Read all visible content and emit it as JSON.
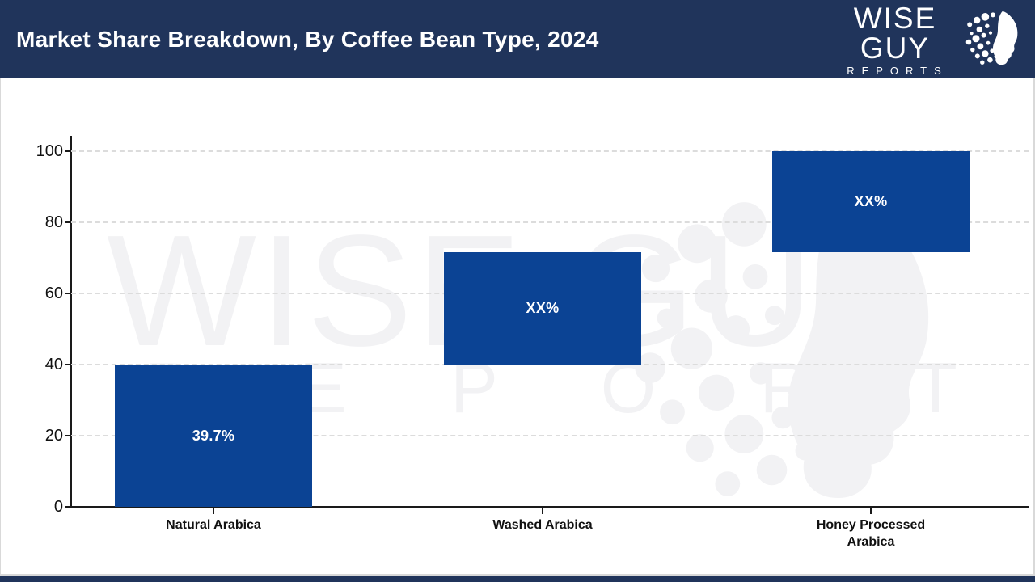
{
  "header": {
    "title": "Market Share Breakdown, By Coffee Bean Type, 2024"
  },
  "logo": {
    "line1": "WISE GUY",
    "line2": "REPORTS",
    "icon": "dotted-face-profile"
  },
  "watermark": {
    "line1": "WISE GUY",
    "line2": "R E P O R T S",
    "icon": "dotted-face-profile"
  },
  "colors": {
    "header_navy": "#20345B",
    "footer_navy": "#20345B",
    "bar_blue": "#0B4394",
    "bar_label_white": "#FFFFFF",
    "gridline_gray": "#DCDCDC",
    "axis_black": "#1A1A1A",
    "watermark_gray": "#F2F2F4",
    "card_border_gray": "#D9D9D9"
  },
  "chart_data": {
    "type": "bar",
    "subtype": "waterfall",
    "title": "Market Share Breakdown, By Coffee Bean Type, 2024",
    "categories": [
      "Natural Arabica",
      "Washed Arabica",
      "Honey Processed Arabica"
    ],
    "segments": [
      {
        "category": "Natural Arabica",
        "start": 0,
        "end": 39.7,
        "label": "39.7%"
      },
      {
        "category": "Washed Arabica",
        "start": 40,
        "end": 71.6,
        "label": "XX%"
      },
      {
        "category": "Honey Processed Arabica",
        "start": 71.6,
        "end": 100,
        "label": "XX%"
      }
    ],
    "xlabel": "",
    "ylabel": "",
    "yticks": [
      0,
      20,
      40,
      60,
      80,
      100
    ],
    "ylim": [
      0,
      104
    ],
    "grid": "horizontal-dashed",
    "legend": "none",
    "bar_color": "#0B4394"
  }
}
